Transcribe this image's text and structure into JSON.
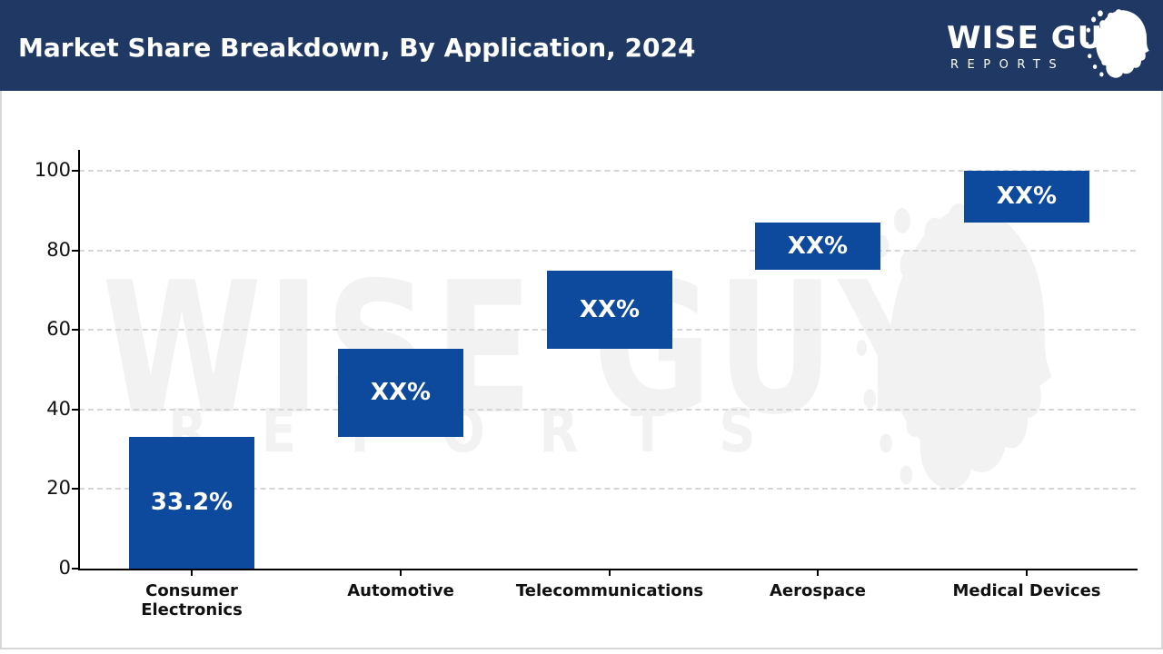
{
  "header": {
    "title": "Market Share Breakdown, By Application, 2024",
    "bg_color": "#1f3864",
    "logo": {
      "line1": "WISE GUY",
      "line2": "REPORTS"
    }
  },
  "watermark": {
    "line1": "WISE GUY",
    "line2": "REPORTS"
  },
  "chart_data": {
    "type": "bar",
    "subtype": "waterfall",
    "title": "Market Share Breakdown, By Application, 2024",
    "xlabel": "",
    "ylabel": "",
    "categories": [
      "Consumer Electronics",
      "Automotive",
      "Telecommunications",
      "Aerospace",
      "Medical Devices"
    ],
    "segments": [
      {
        "category": "Consumer Electronics",
        "start": 0,
        "end": 33.2,
        "label": "33.2%"
      },
      {
        "category": "Automotive",
        "start": 33.2,
        "end": 55.2,
        "label": "XX%"
      },
      {
        "category": "Telecommunications",
        "start": 55.2,
        "end": 75.0,
        "label": "XX%"
      },
      {
        "category": "Aerospace",
        "start": 75.0,
        "end": 87.0,
        "label": "XX%"
      },
      {
        "category": "Medical Devices",
        "start": 87.0,
        "end": 100.0,
        "label": "XX%"
      }
    ],
    "y_ticks": [
      0,
      20,
      40,
      60,
      80,
      100
    ],
    "ylim": [
      0,
      105
    ],
    "grid": "horizontal-dashed",
    "legend": "none",
    "bar_color": "#0d4a9e",
    "bar_label_color": "#ffffff"
  }
}
